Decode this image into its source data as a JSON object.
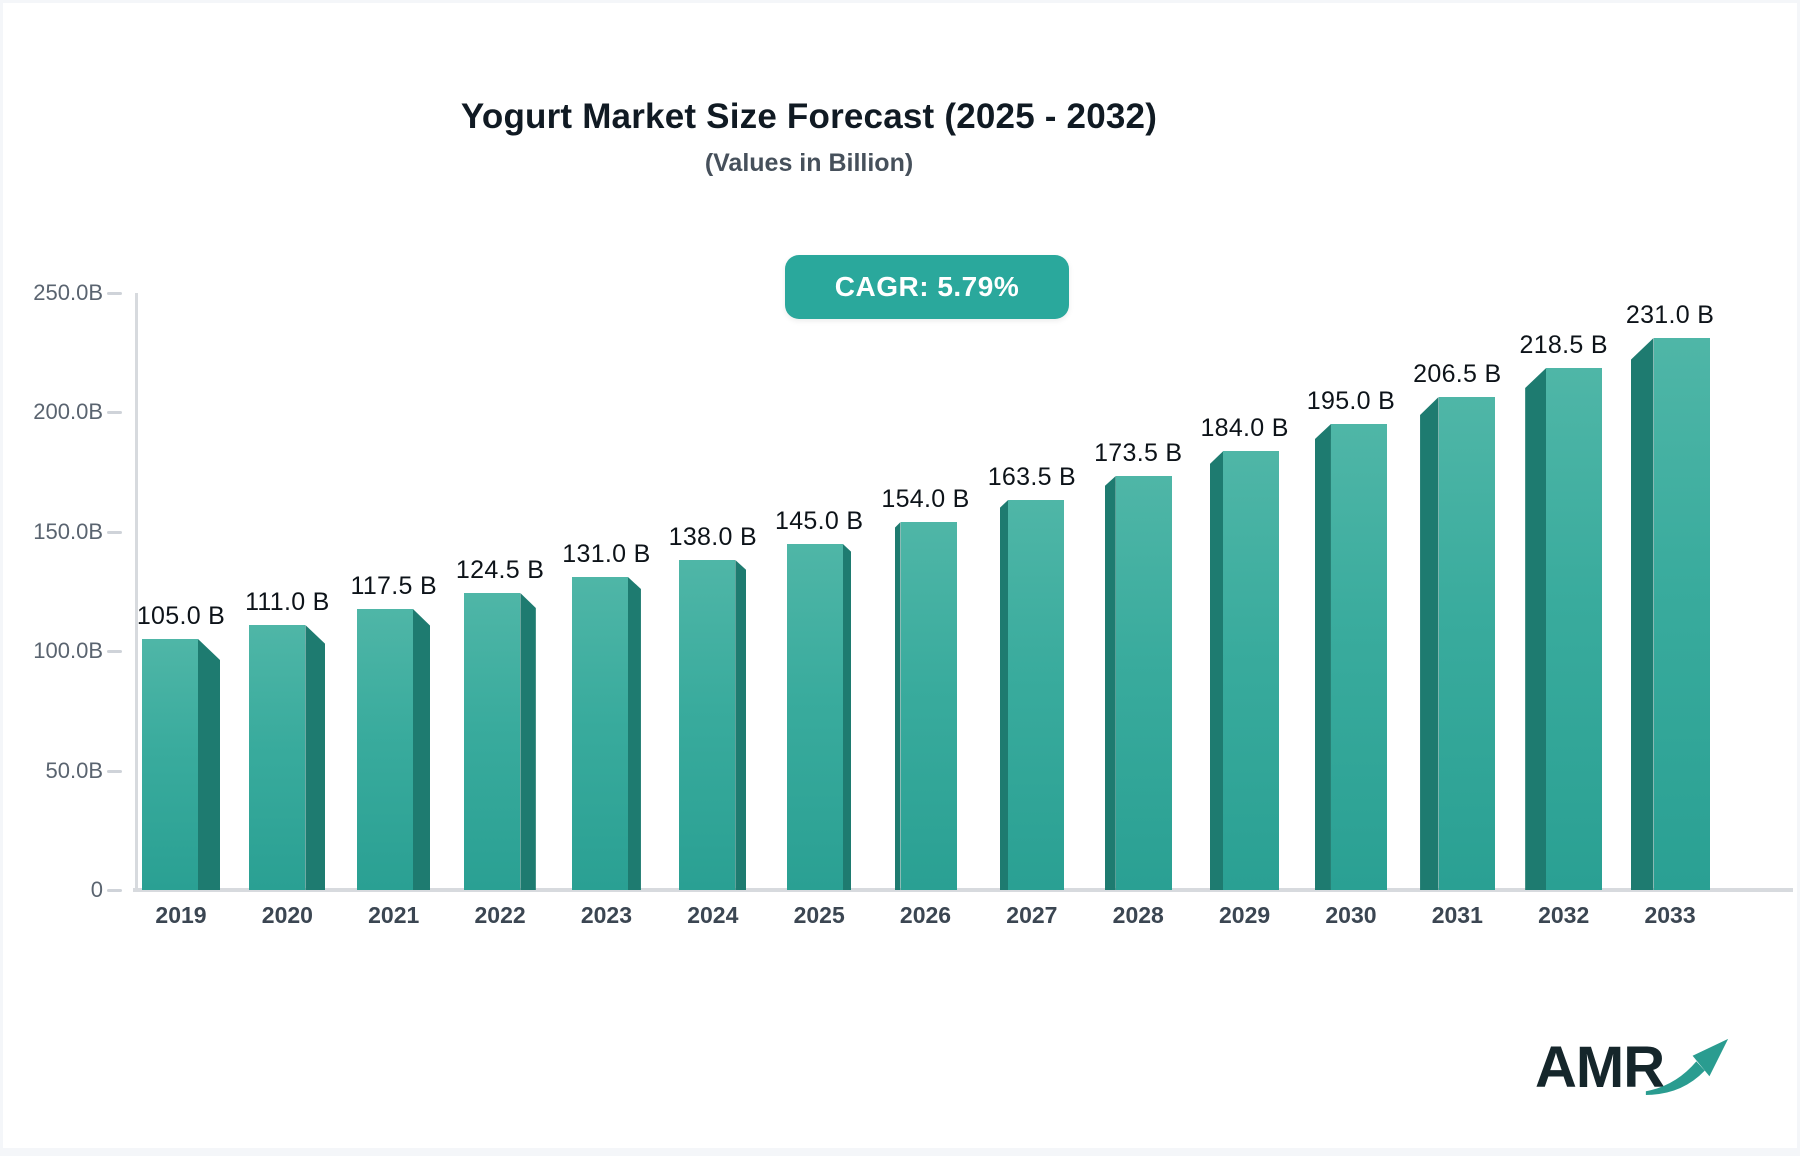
{
  "header": {
    "title": "Yogurt Market Size Forecast (2025 - 2032)",
    "subtitle": "(Values in Billion)",
    "cagr_label": "CAGR: 5.79%"
  },
  "logo": {
    "text": "AMR",
    "arrow_icon": "trend-up-arrow"
  },
  "colors": {
    "title_text": "#101a23",
    "subtitle_text": "#46505b",
    "badge_bg": "#2aa89c",
    "badge_text": "#ffffff",
    "bar_face_top": "#4fb6a7",
    "bar_face_mid": "#39ab9d",
    "bar_face_bottom": "#2aa093",
    "bar_side": "#1e7b70",
    "axis_line": "#d7dade",
    "tick_text": "#5a6470",
    "year_text": "#3b4652",
    "value_text": "#0d1319",
    "logo_text": "#15262b",
    "logo_arrow": "#2a9c90"
  },
  "chart_data": {
    "type": "bar",
    "title": "Yogurt Market Size Forecast (2025 - 2032)",
    "subtitle": "(Values in Billion)",
    "annotation": "CAGR: 5.79%",
    "unit": "Billion",
    "categories": [
      "2019",
      "2020",
      "2021",
      "2022",
      "2023",
      "2024",
      "2025",
      "2026",
      "2027",
      "2028",
      "2029",
      "2030",
      "2031",
      "2032",
      "2033"
    ],
    "values": [
      105.0,
      111.0,
      117.5,
      124.5,
      131.0,
      138.0,
      145.0,
      154.0,
      163.5,
      173.5,
      184.0,
      195.0,
      206.5,
      218.5,
      231.0
    ],
    "bar_labels": [
      "105.0 B",
      "111.0 B",
      "117.5 B",
      "124.5 B",
      "131.0 B",
      "138.0 B",
      "145.0 B",
      "154.0 B",
      "163.5 B",
      "173.5 B",
      "184.0 B",
      "195.0 B",
      "206.5 B",
      "218.5 B",
      "231.0 B"
    ],
    "ylim": [
      0,
      250
    ],
    "y_ticks": [
      250,
      200,
      150,
      100,
      50,
      0
    ],
    "y_tick_labels": [
      "250.0B",
      "200.0B",
      "150.0B",
      "100.0B",
      "50.0B",
      "0"
    ],
    "grid": false,
    "legend": false,
    "bar_style": "3d-perspective"
  }
}
